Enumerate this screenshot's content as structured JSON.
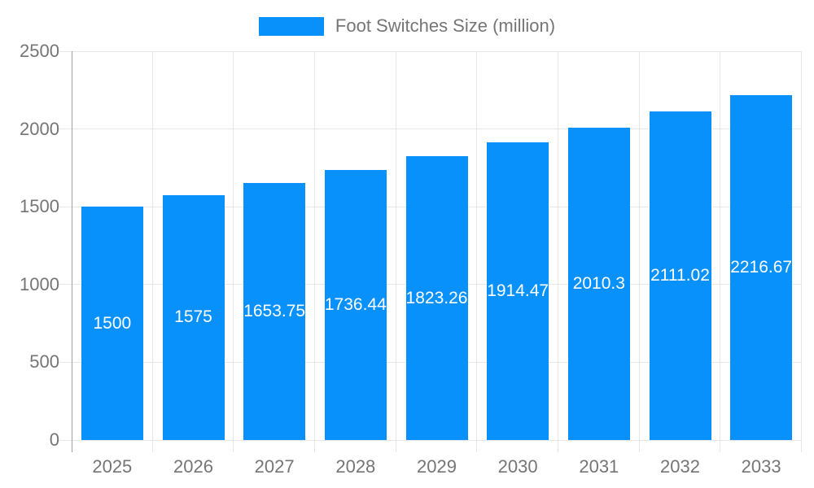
{
  "chart_data": {
    "type": "bar",
    "series_name": "Foot Switches Size (million)",
    "categories": [
      "2025",
      "2026",
      "2027",
      "2028",
      "2029",
      "2030",
      "2031",
      "2032",
      "2033"
    ],
    "values": [
      1500,
      1575,
      1653.75,
      1736.44,
      1823.26,
      1914.47,
      2010.3,
      2111.02,
      2216.67
    ],
    "value_labels": [
      "1500",
      "1575",
      "1653.75",
      "1736.44",
      "1823.26",
      "1914.47",
      "2010.3",
      "2111.02",
      "2216.67"
    ],
    "yticks": [
      0,
      500,
      1000,
      1500,
      2000,
      2500
    ],
    "ytick_labels": [
      "0",
      "500",
      "1000",
      "1500",
      "2000",
      "2500"
    ],
    "ylim": [
      0,
      2500
    ],
    "xlabel": "",
    "ylabel": "",
    "grid": true,
    "legend_position": "top",
    "bar_color": "#0991fb",
    "value_label_color": "#ffffff",
    "axis_text_color": "#757575",
    "gridline_color": "#e6e6e6",
    "axis_line_color": "#a0a0a0"
  }
}
